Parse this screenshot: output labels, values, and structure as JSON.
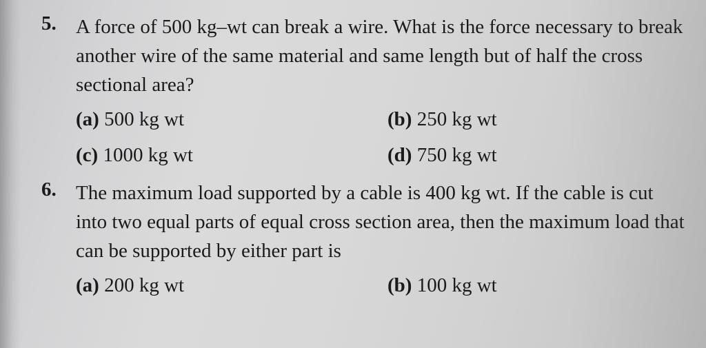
{
  "questions": [
    {
      "number": "5.",
      "text": "A force of 500 kg–wt can break a wire. What is the force necessary to break another wire of the same material and same length but of half the cross sectional area?",
      "options": [
        {
          "label": "(a)",
          "text": "500 kg wt"
        },
        {
          "label": "(b)",
          "text": "250 kg wt"
        },
        {
          "label": "(c)",
          "text": "1000 kg wt"
        },
        {
          "label": "(d)",
          "text": "750 kg wt"
        }
      ]
    },
    {
      "number": "6.",
      "text": "The maximum load supported by a cable is 400 kg wt. If the cable is cut into two equal parts of equal cross section area, then the maximum load that can be supported by either part is",
      "options": [
        {
          "label": "(a)",
          "text": "200 kg wt"
        },
        {
          "label": "(b)",
          "text": "100 kg wt"
        }
      ]
    }
  ]
}
